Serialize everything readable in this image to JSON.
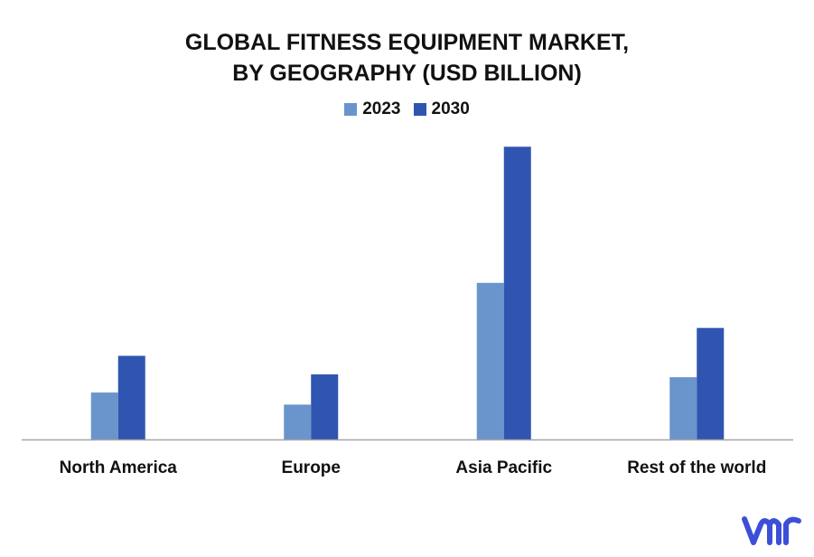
{
  "chart_data": {
    "type": "bar",
    "title_lines": [
      "GLOBAL FITNESS EQUIPMENT MARKET,",
      "BY GEOGRAPHY (USD BILLION)"
    ],
    "categories": [
      "North America",
      "Europe",
      "Asia Pacific",
      "Rest of the world"
    ],
    "series": [
      {
        "name": "2023",
        "color": "#6a95cc",
        "values": [
          10.1,
          7.5,
          33.7,
          13.4
        ]
      },
      {
        "name": "2030",
        "color": "#2f55b1",
        "values": [
          18.0,
          14.0,
          63.0,
          24.0
        ]
      }
    ],
    "ylim": [
      0,
      65
    ],
    "grid": false,
    "legend_position": "top-center",
    "axis_color": "#a6a6a6"
  },
  "brand": {
    "logo_icon": "vmr-logo-icon",
    "logo_text": "vmr",
    "logo_color": "#3d4fd8"
  }
}
